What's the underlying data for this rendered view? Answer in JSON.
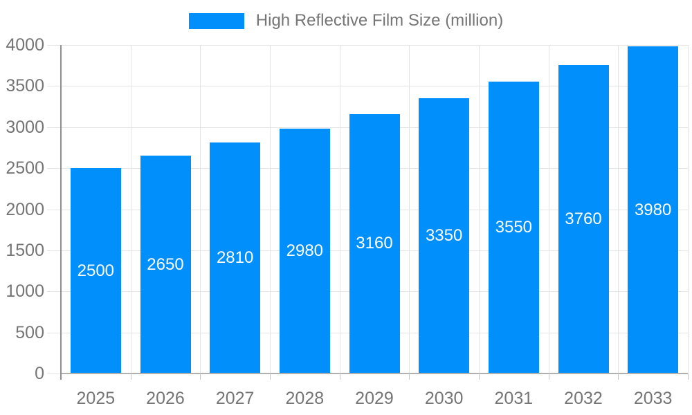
{
  "chart_data": {
    "type": "bar",
    "title": "High Reflective Film Size (million)",
    "legend": {
      "label": "High Reflective Film Size (million)",
      "position": "top-center"
    },
    "categories": [
      "2025",
      "2026",
      "2027",
      "2028",
      "2029",
      "2030",
      "2031",
      "2032",
      "2033"
    ],
    "values": [
      2500,
      2650,
      2810,
      2980,
      3160,
      3350,
      3550,
      3760,
      3980
    ],
    "bar_labels": [
      "2500",
      "2650",
      "2810",
      "2980",
      "3160",
      "3350",
      "3550",
      "3760",
      "3980"
    ],
    "xlabel": "",
    "ylabel": "",
    "ylim": [
      0,
      4000
    ],
    "yticks": [
      0,
      500,
      1000,
      1500,
      2000,
      2500,
      3000,
      3500,
      4000
    ],
    "grid": "horizontal and vertical light gray gridlines",
    "bar_label_position": "inside-center"
  },
  "colors": {
    "bar": "#008FFB",
    "bar_label_text": "#ffffff",
    "axis_tick_label": "#757575",
    "legend_text": "#757575",
    "gridline": "#e4e4e4",
    "y_axis_line": "#8f8f8f",
    "x_baseline": "#b0b0b0",
    "category_tick": "#c6c6c6",
    "background": "#ffffff"
  }
}
